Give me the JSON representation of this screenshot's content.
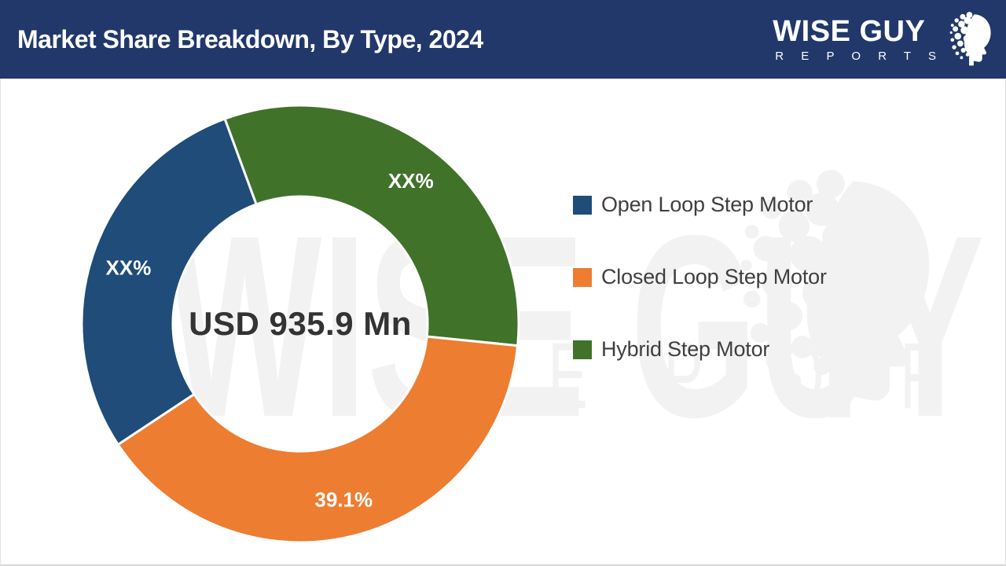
{
  "header": {
    "title": "Market Share Breakdown, By Type, 2024",
    "bg_color": "#22386B",
    "logo": {
      "line1": "WISE GUY",
      "line2": "R E P O R T S"
    }
  },
  "watermark": {
    "line1": "WISE GUY",
    "line2": "R E P O R T S"
  },
  "center_label": "USD 935.9 Mn",
  "chart_data": {
    "type": "pie",
    "subtype": "donut",
    "title": "Market Share Breakdown, By Type, 2024",
    "center_text": "USD 935.9 Mn",
    "start_angle_deg": -20.2,
    "categories": [
      "Hybrid Step Motor",
      "Closed Loop Step Motor",
      "Open Loop Step Motor"
    ],
    "values": [
      32.2,
      39.1,
      28.7
    ],
    "labels": [
      "XX%",
      "39.1%",
      "XX%"
    ],
    "colors": [
      "#41722A",
      "#ED7D31",
      "#1F4C78"
    ],
    "legend_position": "right",
    "slice_border_color": "#ffffff"
  },
  "legend": {
    "items": [
      {
        "label": "Open Loop Step Motor",
        "color": "#1F4C78"
      },
      {
        "label": "Closed Loop Step Motor",
        "color": "#ED7D31"
      },
      {
        "label": "Hybrid Step Motor",
        "color": "#41722A"
      }
    ]
  }
}
